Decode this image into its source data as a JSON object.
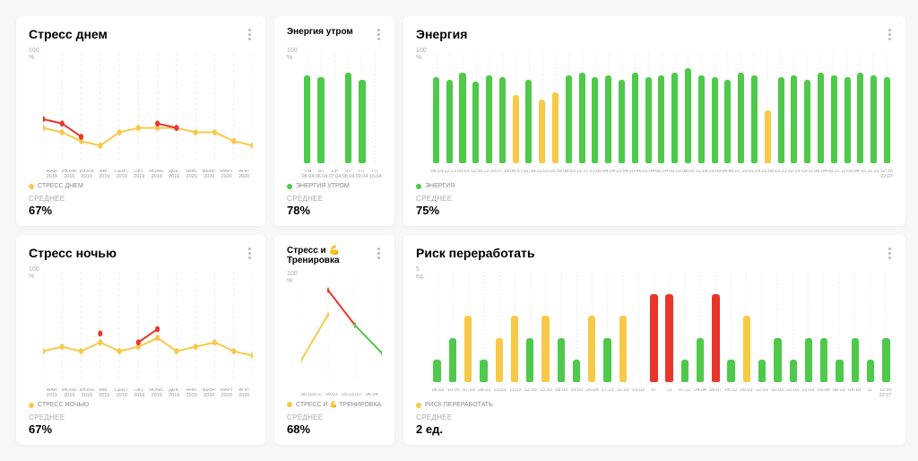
{
  "colors": {
    "green": "#4ec94a",
    "yellow": "#f7c948",
    "red": "#e9362b",
    "grid": "#eeeeee",
    "card_bg": "#ffffff",
    "page_bg": "#f7f7f7",
    "text_muted": "#aaaaaa"
  },
  "y_axis_label": "100",
  "y_axis_unit": "%",
  "avg_label": "СРЕДНЕЕ",
  "cards": {
    "stress_day": {
      "title": "Стресс днем",
      "type": "line",
      "legend": "СТРЕСС ДНЕМ",
      "legend_color": "#f7c948",
      "avg": "67%",
      "x_labels": [
        "МАЙ 2019",
        "ИЮНЬ 2019",
        "ИЮЛЬ 2019",
        "АВГ. 2019",
        "СЕНТ. 2019",
        "ОКТ. 2019",
        "НОЯБ. 2019",
        "ДЕК. 2019",
        "ЯНВ. 2020",
        "ФЕВР. 2020",
        "МАРТ 2020",
        "АПР. 2020"
      ],
      "series": [
        {
          "color": "#f7c948",
          "values": [
            66,
            64,
            60,
            58,
            64,
            66,
            66,
            66,
            64,
            64,
            60,
            58
          ]
        },
        {
          "color": "#e9362b",
          "values": [
            70,
            68,
            62,
            null,
            null,
            null,
            68,
            66,
            null,
            null,
            null,
            null
          ]
        }
      ],
      "ylim": [
        50,
        100
      ]
    },
    "energy_morning": {
      "title": "Энергия утром",
      "type": "bar",
      "legend": "ЭНЕРГИЯ УТРОМ",
      "legend_color": "#4ec94a",
      "avg": "78%",
      "x_labels": [
        "ПН 05.04",
        "ВТ 06.04",
        "СР 07.04",
        "ЧТ 08.04",
        "ПТ 09.04",
        "ПТ 10.04"
      ],
      "bars": [
        {
          "v": 80,
          "c": "#4ec94a"
        },
        {
          "v": 78,
          "c": "#4ec94a"
        },
        {
          "v": 0,
          "c": "#4ec94a"
        },
        {
          "v": 82,
          "c": "#4ec94a"
        },
        {
          "v": 76,
          "c": "#4ec94a"
        },
        {
          "v": 0,
          "c": "#4ec94a"
        }
      ],
      "ylim": [
        0,
        100
      ]
    },
    "energy": {
      "title": "Энергия",
      "type": "bar",
      "legend": "ЭНЕРГИЯ",
      "legend_color": "#4ec94a",
      "avg": "75%",
      "x_labels": [
        "04.19",
        "12:21",
        "09.03",
        "12:35",
        "12:20",
        "07:18",
        "08:57",
        "01:34",
        "13.03",
        "15:59",
        "08:53",
        "12:17",
        "21:00",
        "04.04",
        "12:54",
        "20:46",
        "01:04",
        "00.04",
        "09.03",
        "08:05",
        "12:18",
        "19:09",
        "04:45",
        "07:10",
        "01.04",
        "15:58",
        "12:22",
        "22:29",
        "03:11",
        "08.04",
        "08:11",
        "12:00",
        "04:10",
        "11:21",
        "12:35 22:07"
      ],
      "bars": [
        {
          "v": 78,
          "c": "#4ec94a"
        },
        {
          "v": 76,
          "c": "#4ec94a"
        },
        {
          "v": 82,
          "c": "#4ec94a"
        },
        {
          "v": 74,
          "c": "#4ec94a"
        },
        {
          "v": 80,
          "c": "#4ec94a"
        },
        {
          "v": 78,
          "c": "#4ec94a"
        },
        {
          "v": 62,
          "c": "#f7c948"
        },
        {
          "v": 76,
          "c": "#4ec94a"
        },
        {
          "v": 58,
          "c": "#f7c948"
        },
        {
          "v": 64,
          "c": "#f7c948"
        },
        {
          "v": 80,
          "c": "#4ec94a"
        },
        {
          "v": 82,
          "c": "#4ec94a"
        },
        {
          "v": 78,
          "c": "#4ec94a"
        },
        {
          "v": 80,
          "c": "#4ec94a"
        },
        {
          "v": 76,
          "c": "#4ec94a"
        },
        {
          "v": 82,
          "c": "#4ec94a"
        },
        {
          "v": 78,
          "c": "#4ec94a"
        },
        {
          "v": 80,
          "c": "#4ec94a"
        },
        {
          "v": 82,
          "c": "#4ec94a"
        },
        {
          "v": 86,
          "c": "#4ec94a"
        },
        {
          "v": 80,
          "c": "#4ec94a"
        },
        {
          "v": 78,
          "c": "#4ec94a"
        },
        {
          "v": 76,
          "c": "#4ec94a"
        },
        {
          "v": 82,
          "c": "#4ec94a"
        },
        {
          "v": 80,
          "c": "#4ec94a"
        },
        {
          "v": 48,
          "c": "#f7c948"
        },
        {
          "v": 78,
          "c": "#4ec94a"
        },
        {
          "v": 80,
          "c": "#4ec94a"
        },
        {
          "v": 76,
          "c": "#4ec94a"
        },
        {
          "v": 82,
          "c": "#4ec94a"
        },
        {
          "v": 80,
          "c": "#4ec94a"
        },
        {
          "v": 78,
          "c": "#4ec94a"
        },
        {
          "v": 82,
          "c": "#4ec94a"
        },
        {
          "v": 80,
          "c": "#4ec94a"
        },
        {
          "v": 78,
          "c": "#4ec94a"
        }
      ],
      "ylim": [
        0,
        100
      ]
    },
    "stress_night": {
      "title": "Стресс ночью",
      "type": "line",
      "legend": "СТРЕСС НОЧЬЮ",
      "legend_color": "#f7c948",
      "avg": "67%",
      "x_labels": [
        "МАЙ 2019",
        "ИЮНЬ 2019",
        "ИЮЛЬ 2019",
        "АВГ. 2019",
        "СЕНТ. 2019",
        "ОКТ. 2019",
        "НОЯБ. 2019",
        "ДЕК. 2019",
        "ЯНВ. 2020",
        "ФЕВР. 2020",
        "МАРТ 2020",
        "АПР. 2020"
      ],
      "series": [
        {
          "color": "#f7c948",
          "values": [
            64,
            66,
            64,
            68,
            64,
            66,
            70,
            64,
            66,
            68,
            64,
            62
          ]
        },
        {
          "color": "#e9362b",
          "values": [
            null,
            null,
            null,
            72,
            null,
            68,
            74,
            null,
            null,
            null,
            null,
            null
          ]
        }
      ],
      "ylim": [
        50,
        100
      ]
    },
    "stress_training": {
      "title": "Стресс и 💪 Тренировка",
      "type": "line",
      "legend": "СТРЕСС И 💪 ТРЕНИРОВКА",
      "legend_color": "#f7c948",
      "avg": "68%",
      "x_labels": [
        "05.029.03",
        "09.03",
        "25.0310.03",
        "06.04"
      ],
      "series": [
        {
          "color": "#f7c948",
          "values": [
            52,
            78,
            null,
            null
          ]
        },
        {
          "color": "#e9362b",
          "values": [
            null,
            92,
            72,
            null
          ]
        },
        {
          "color": "#4ec94a",
          "values": [
            null,
            null,
            72,
            56
          ]
        }
      ],
      "ylim": [
        40,
        100
      ]
    },
    "risk": {
      "title": "Риск переработать",
      "type": "bar",
      "legend": "РИСК ПЕРЕРАБОТАТЬ",
      "legend_color": "#f7c948",
      "avg": "2 ед.",
      "y_axis_label": "5",
      "y_axis_unit": "ед.",
      "x_labels": [
        "05.03",
        "10.03",
        "07.03",
        "08.03",
        "23.03",
        "11.03",
        "12.03",
        "13.03",
        "08.03",
        "19.03",
        "20.04",
        "17.21",
        "31.03",
        "03.02",
        "07",
        "12",
        "07.22",
        "04.04",
        "05.07",
        "05.22",
        "09.03",
        "22.03",
        "10.03",
        "22.03",
        "22.03",
        "03.04",
        "08.03",
        "04.18",
        "11",
        "12:35 22:07"
      ],
      "bars": [
        {
          "v": 1,
          "c": "#4ec94a"
        },
        {
          "v": 2,
          "c": "#4ec94a"
        },
        {
          "v": 3,
          "c": "#f7c948"
        },
        {
          "v": 1,
          "c": "#4ec94a"
        },
        {
          "v": 2,
          "c": "#f7c948"
        },
        {
          "v": 3,
          "c": "#f7c948"
        },
        {
          "v": 2,
          "c": "#4ec94a"
        },
        {
          "v": 3,
          "c": "#f7c948"
        },
        {
          "v": 2,
          "c": "#4ec94a"
        },
        {
          "v": 1,
          "c": "#4ec94a"
        },
        {
          "v": 3,
          "c": "#f7c948"
        },
        {
          "v": 2,
          "c": "#4ec94a"
        },
        {
          "v": 3,
          "c": "#f7c948"
        },
        {
          "v": 0,
          "c": "#4ec94a"
        },
        {
          "v": 4,
          "c": "#e9362b"
        },
        {
          "v": 4,
          "c": "#e9362b"
        },
        {
          "v": 1,
          "c": "#4ec94a"
        },
        {
          "v": 2,
          "c": "#4ec94a"
        },
        {
          "v": 4,
          "c": "#e9362b"
        },
        {
          "v": 1,
          "c": "#4ec94a"
        },
        {
          "v": 3,
          "c": "#f7c948"
        },
        {
          "v": 1,
          "c": "#4ec94a"
        },
        {
          "v": 2,
          "c": "#4ec94a"
        },
        {
          "v": 1,
          "c": "#4ec94a"
        },
        {
          "v": 2,
          "c": "#4ec94a"
        },
        {
          "v": 2,
          "c": "#4ec94a"
        },
        {
          "v": 1,
          "c": "#4ec94a"
        },
        {
          "v": 2,
          "c": "#4ec94a"
        },
        {
          "v": 1,
          "c": "#4ec94a"
        },
        {
          "v": 2,
          "c": "#4ec94a"
        }
      ],
      "ylim": [
        0,
        5
      ]
    }
  }
}
